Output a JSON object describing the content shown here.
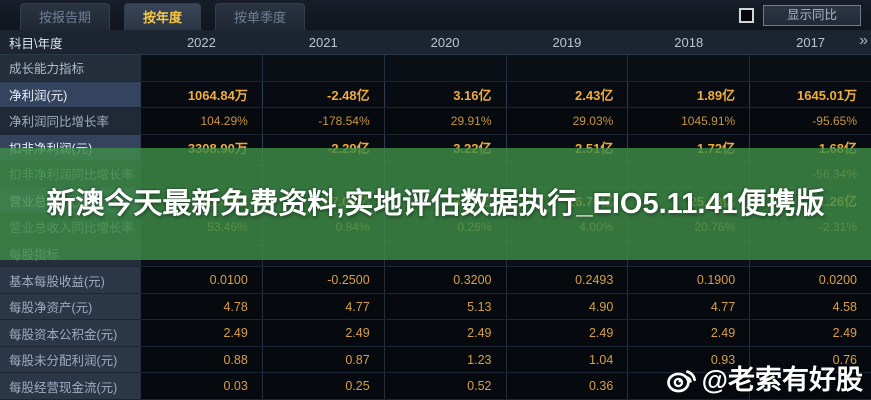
{
  "tabs": [
    {
      "label": "按报告期",
      "selected": false
    },
    {
      "label": "按年度",
      "selected": true
    },
    {
      "label": "按单季度",
      "selected": false
    }
  ],
  "controls": {
    "show_yoy_label": "显示同比",
    "checkbox_checked": false
  },
  "table": {
    "corner_label": "科目\\年度",
    "years": [
      "2022",
      "2021",
      "2020",
      "2019",
      "2018",
      "2017"
    ],
    "more_icon": "»",
    "rows": [
      {
        "type": "section",
        "label": "成长能力指标",
        "values": [
          "",
          "",
          "",
          "",
          "",
          ""
        ]
      },
      {
        "type": "highlight",
        "label": "净利润(元)",
        "values": [
          "1064.84万",
          "-2.48亿",
          "3.16亿",
          "2.43亿",
          "1.89亿",
          "1645.01万"
        ]
      },
      {
        "type": "pct",
        "label": "净利润同比增长率",
        "values": [
          "104.29%",
          "-178.54%",
          "29.91%",
          "29.03%",
          "1045.91%",
          "-95.65%"
        ]
      },
      {
        "type": "highlight",
        "label": "扣非净利润(元)",
        "values": [
          "3308.90万",
          "-2.29亿",
          "3.22亿",
          "2.51亿",
          "1.72亿",
          "1.68亿"
        ]
      },
      {
        "type": "pct",
        "label": "扣非净利润同比增长率",
        "values": [
          "",
          "",
          "",
          "",
          "",
          "-56.34%"
        ]
      },
      {
        "type": "highlight",
        "label": "营业总收入(元)",
        "values": [
          "41.43亿",
          "27.00亿",
          "26.77亿",
          "26.70亿",
          "25.68亿",
          "21.26亿"
        ]
      },
      {
        "type": "pct",
        "label": "营业总收入同比增长率",
        "values": [
          "53.46%",
          "0.84%",
          "0.26%",
          "4.00%",
          "20.76%",
          "-2.31%"
        ]
      },
      {
        "type": "section",
        "label": "每股指标",
        "values": [
          "",
          "",
          "",
          "",
          "",
          ""
        ]
      },
      {
        "type": "metric",
        "label": "基本每股收益(元)",
        "values": [
          "0.0100",
          "-0.2500",
          "0.3200",
          "0.2493",
          "0.1900",
          "0.0200"
        ]
      },
      {
        "type": "metric",
        "label": "每股净资产(元)",
        "values": [
          "4.78",
          "4.77",
          "5.13",
          "4.90",
          "4.77",
          "4.58"
        ]
      },
      {
        "type": "metric",
        "label": "每股资本公积金(元)",
        "values": [
          "2.49",
          "2.49",
          "2.49",
          "2.49",
          "2.49",
          "2.49"
        ]
      },
      {
        "type": "metric",
        "label": "每股未分配利润(元)",
        "values": [
          "0.88",
          "0.87",
          "1.23",
          "1.04",
          "0.93",
          "0.76"
        ]
      },
      {
        "type": "metric",
        "label": "每股经营现金流(元)",
        "values": [
          "0.03",
          "0.25",
          "0.52",
          "0.36",
          "",
          ""
        ]
      }
    ]
  },
  "overlay": {
    "text": "新澳今天最新免费资料,实地评估数据执行_EIO5.11.41便携版"
  },
  "watermark": {
    "text": "@老索有好股",
    "icon": "weibo-icon"
  },
  "colors": {
    "accent_yellow": "#f6c844",
    "value_orange": "#d49a3e",
    "value_bright": "#f0ad3a",
    "overlay_green": "rgba(62,140,72,0.82)",
    "highlight_row_bg": "#34445f"
  }
}
